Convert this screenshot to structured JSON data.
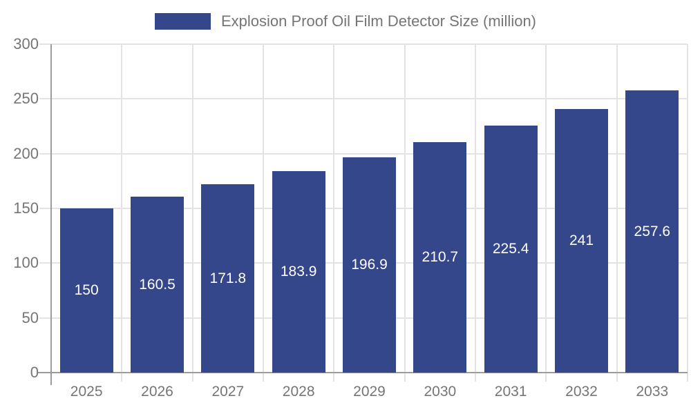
{
  "chart_data": {
    "type": "bar",
    "title": "Explosion Proof Oil Film Detector Size (million)",
    "categories": [
      "2025",
      "2026",
      "2027",
      "2028",
      "2029",
      "2030",
      "2031",
      "2032",
      "2033"
    ],
    "values": [
      150,
      160.5,
      171.8,
      183.9,
      196.9,
      210.7,
      225.4,
      241,
      257.6
    ],
    "value_labels": [
      "150",
      "160.5",
      "171.8",
      "183.9",
      "196.9",
      "210.7",
      "225.4",
      "241",
      "257.6"
    ],
    "xlabel": "",
    "ylabel": "",
    "ylim": [
      0,
      300
    ],
    "yticks": [
      0,
      50,
      100,
      150,
      200,
      250,
      300
    ],
    "grid": true,
    "legend_position": "top",
    "colors": {
      "bar": "#35478B",
      "grid": "#e3e3e3",
      "axis": "#9b9b9b",
      "tick_label": "#757575",
      "value_text": "#ffffff",
      "background": "#ffffff"
    }
  },
  "legend": {
    "label": "Explosion Proof Oil Film Detector Size (million)"
  }
}
